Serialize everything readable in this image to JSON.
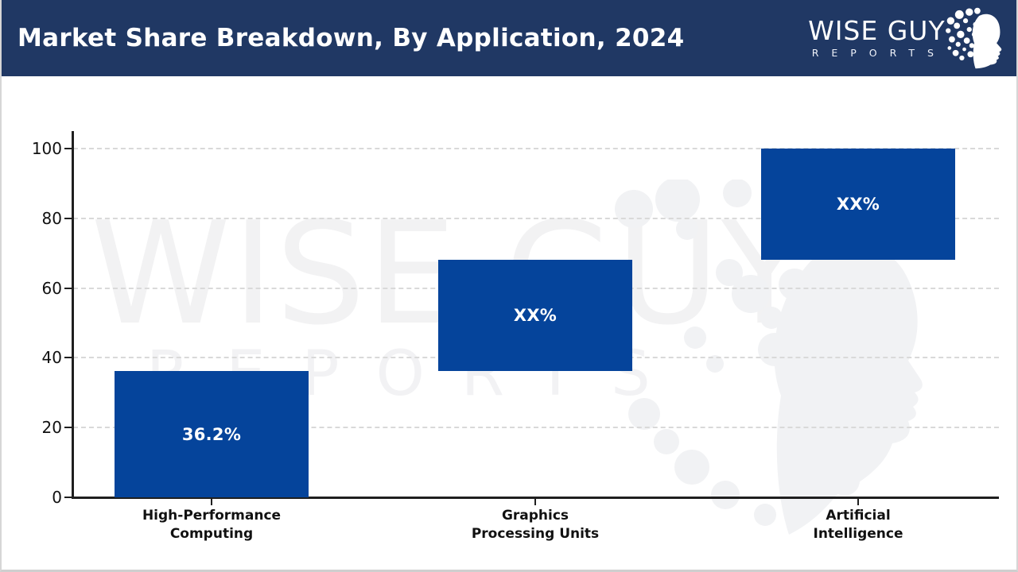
{
  "header": {
    "title": "Market Share Breakdown, By Application, 2024",
    "bg_color": "#203864"
  },
  "brand": {
    "wordmark": "WISE GUY",
    "sub": "REPORTS"
  },
  "watermark": {
    "wordmark": "WISE GUY",
    "sub": "REPORTS"
  },
  "chart_data": {
    "type": "bar",
    "subtype": "floating-stacked-percentage-breakdown",
    "title": "Market Share Breakdown, By Application, 2024",
    "categories": [
      "High-Performance Computing",
      "Graphics Processing Units",
      "Artificial Intelligence"
    ],
    "category_lines": [
      [
        "High-Performance",
        "Computing"
      ],
      [
        "Graphics",
        "Processing Units"
      ],
      [
        "Artificial",
        "Intelligence"
      ]
    ],
    "bars": [
      {
        "start": 0,
        "end": 36.2,
        "label": "36.2%"
      },
      {
        "start": 36.2,
        "end": 68.1,
        "label": "XX%"
      },
      {
        "start": 68.1,
        "end": 100,
        "label": "XX%"
      }
    ],
    "xlabel": "",
    "ylabel": "",
    "ylim": [
      0,
      100
    ],
    "yticks": [
      0,
      20,
      40,
      60,
      80,
      100
    ],
    "grid": "horizontal-dashed",
    "legend": "none",
    "bar_color": "#05449B",
    "value_label_color": "#ffffff",
    "axis_color": "#1f1f1f",
    "gridline_color": "#d9d9d9"
  }
}
